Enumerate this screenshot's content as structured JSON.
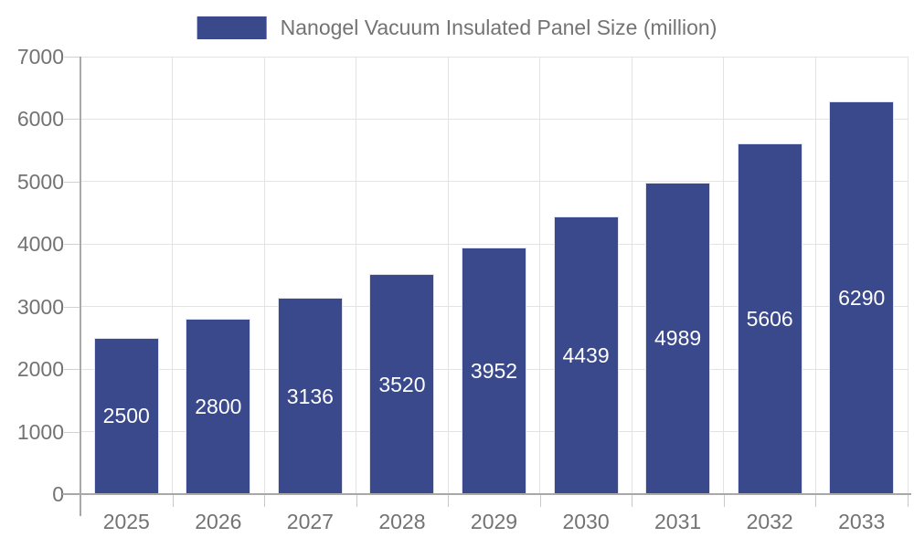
{
  "legend": {
    "label": "Nanogel Vacuum Insulated Panel Size (million)"
  },
  "colors": {
    "bar": "#3A488C",
    "bar_border": "#e0e2ec",
    "grid": "#e3e3e3",
    "axis": "#a8a8a8",
    "tick": "#c9c9c9",
    "axis_text": "#737373",
    "value_label_text": "#ffffff",
    "background": "#ffffff"
  },
  "chart_data": {
    "type": "bar",
    "title": "Nanogel Vacuum Insulated Panel Size (million)",
    "series_name": "Nanogel Vacuum Insulated Panel Size (million)",
    "categories": [
      "2025",
      "2026",
      "2027",
      "2028",
      "2029",
      "2030",
      "2031",
      "2032",
      "2033"
    ],
    "values": [
      2500,
      2800,
      3136,
      3520,
      3952,
      4439,
      4989,
      5606,
      6290
    ],
    "xlabel": "",
    "ylabel": "",
    "ylim": [
      0,
      7000
    ],
    "yticks": [
      0,
      1000,
      2000,
      3000,
      4000,
      5000,
      6000,
      7000
    ],
    "grid": true,
    "legend_position": "top-center",
    "value_labels": "inside-center"
  }
}
